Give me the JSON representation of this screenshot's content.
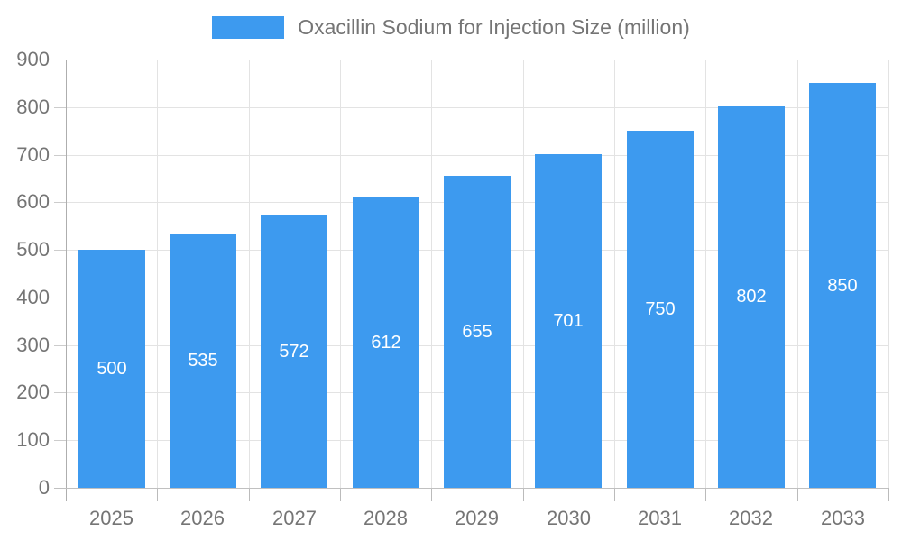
{
  "legend": {
    "label": "Oxacillin Sodium for Injection Size (million)"
  },
  "chart_data": {
    "type": "bar",
    "title": "Oxacillin Sodium for Injection Size (million)",
    "categories": [
      "2025",
      "2026",
      "2027",
      "2028",
      "2029",
      "2030",
      "2031",
      "2032",
      "2033"
    ],
    "series": [
      {
        "name": "Oxacillin Sodium for Injection Size (million)",
        "values": [
          500,
          535,
          572,
          612,
          655,
          701,
          750,
          802,
          850
        ]
      }
    ],
    "xlabel": "",
    "ylabel": "",
    "ylim": [
      0,
      900
    ],
    "y_ticks": [
      0,
      100,
      200,
      300,
      400,
      500,
      600,
      700,
      800,
      900
    ],
    "grid": true,
    "legend_position": "top-center",
    "bar_color": "#3d9aef",
    "bar_label_color": "#ffffff"
  },
  "colors": {
    "accent_blue": "#3d9aef",
    "axis_text": "#757575",
    "gridline": "#e3e3e3",
    "axis_line": "#aeaeae",
    "background": "#ffffff"
  }
}
